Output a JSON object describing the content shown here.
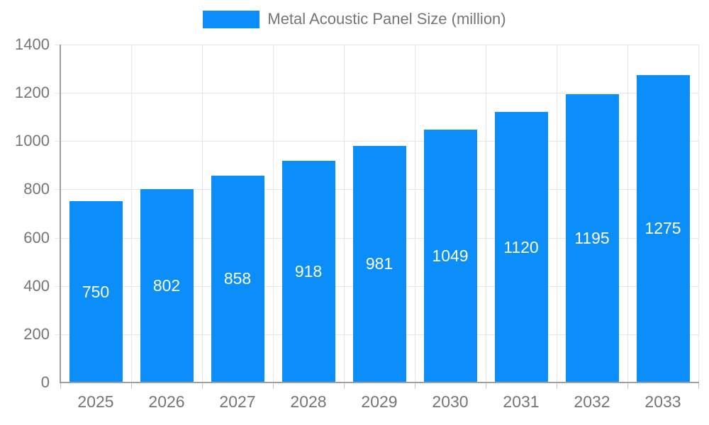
{
  "chart_data": {
    "type": "bar",
    "title": "Metal Acoustic Panel Size (million)",
    "categories": [
      "2025",
      "2026",
      "2027",
      "2028",
      "2029",
      "2030",
      "2031",
      "2032",
      "2033"
    ],
    "values": [
      750,
      802,
      858,
      918,
      981,
      1049,
      1120,
      1195,
      1275
    ],
    "xlabel": "",
    "ylabel": "",
    "ylim": [
      0,
      1400
    ],
    "ytick_step": 200,
    "yticks": [
      0,
      200,
      400,
      600,
      800,
      1000,
      1200,
      1400
    ],
    "grid": true,
    "legend_position": "top-center",
    "value_labels": "inside-center"
  },
  "colors": {
    "bar": "#0C8EFA",
    "axis_text": "#757575",
    "grid_line": "#e7e7e7",
    "axis_line": "#9e9e9e",
    "tick_line": "#c4c4c4",
    "value_label": "#ffffff",
    "background": "#ffffff"
  }
}
